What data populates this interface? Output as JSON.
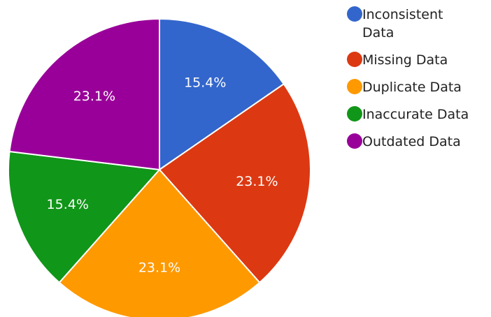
{
  "chart_data": {
    "type": "pie",
    "categories": [
      "Inconsistent Data",
      "Missing Data",
      "Duplicate Data",
      "Inaccurate Data",
      "Outdated Data"
    ],
    "values": [
      15.4,
      23.1,
      23.1,
      15.4,
      23.1
    ],
    "labels": [
      "15.4%",
      "23.1%",
      "23.1%",
      "15.4%",
      "23.1%"
    ],
    "colors": [
      "#3366cc",
      "#dc3912",
      "#ff9900",
      "#109618",
      "#990099"
    ],
    "start_angle_deg": 0,
    "direction": "clockwise",
    "legend_position": "right",
    "legend_wrap": [
      [
        "Inconsistent",
        "Data"
      ],
      [
        "Missing Data"
      ],
      [
        "Duplicate Data"
      ],
      [
        "Inaccurate Data"
      ],
      [
        "Outdated Data"
      ]
    ]
  }
}
